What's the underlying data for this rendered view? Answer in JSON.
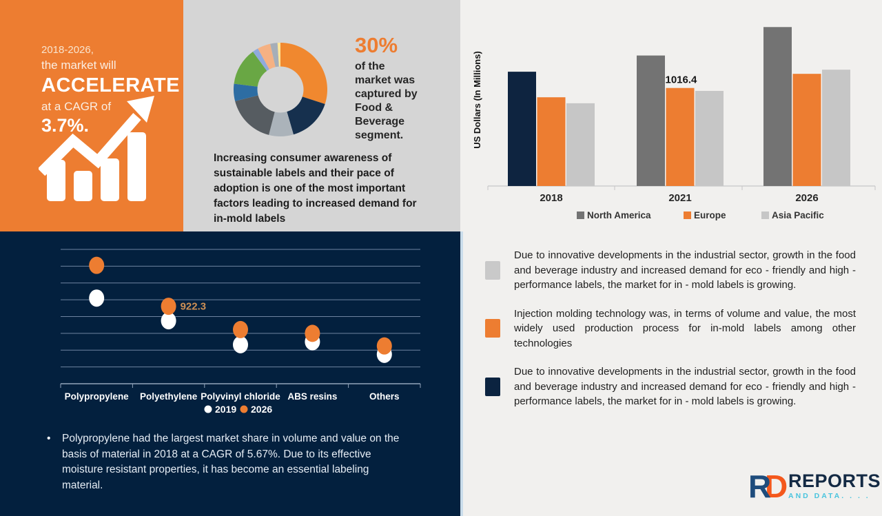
{
  "accelerate_panel": {
    "period": "2018-2026,",
    "line2": "the market will",
    "headline": "ACCELERATE",
    "line4": "at a CAGR of",
    "cagr": "3.7%."
  },
  "insight_panel": {
    "stat_value": "30%",
    "stat_caption": "of the\nmarket was\ncaptured by\nFood &\nBeverage\nsegment.",
    "body": "Increasing consumer awareness of sustainable labels and their pace of adoption is one of the most important factors leading to increased demand for in-mold labels"
  },
  "material_note": "Polypropylene had the largest market share in volume and value on the basis of material in 2018 at a CAGR of 5.67%. Due to its effective moisture resistant properties, it has become an essential labeling material.",
  "insights_right": [
    {
      "marker_color": "#C9C9C9",
      "text": "Due to innovative developments in the industrial sector, growth in the food and beverage industry and increased demand for eco - friendly and high - performance labels, the market for in - mold labels is growing."
    },
    {
      "marker_color": "#ED7D31",
      "text": "Injection molding technology was, in terms of volume and value, the most widely used production process for in-mold labels among other technologies"
    },
    {
      "marker_color": "#0B2340",
      "text": "Due to innovative developments in the industrial sector, growth in the food and beverage industry and increased demand for eco - friendly and high - performance labels, the market for in - mold labels is growing."
    }
  ],
  "logo": {
    "mark_r": "R",
    "mark_d": "D",
    "name": "REPORTS",
    "tagline": "AND DATA. . . ."
  },
  "colors": {
    "accent_orange": "#ED7D31",
    "panel_navy": "#03203E",
    "panel_gray": "#D5D5D5",
    "right_bg": "#F1F0EE"
  },
  "chart_data": [
    {
      "type": "pie",
      "subtype": "donut",
      "highlight_label": "Food & Beverage",
      "highlight_value_pct": 30,
      "slices": [
        {
          "value": 30,
          "color": "#F0882F"
        },
        {
          "value": 15.5,
          "color": "#16304E"
        },
        {
          "value": 8.5,
          "color": "#ABB3BA"
        },
        {
          "value": 17,
          "color": "#565C61"
        },
        {
          "value": 6,
          "color": "#2D6DA3"
        },
        {
          "value": 13,
          "color": "#69A744"
        },
        {
          "value": 2,
          "color": "#8FAADC"
        },
        {
          "value": 4.5,
          "color": "#F5B183"
        },
        {
          "value": 2.5,
          "color": "#A6AEB8"
        },
        {
          "value": 1,
          "color": "#FFE699"
        }
      ]
    },
    {
      "type": "bar",
      "categories": [
        "2018",
        "2021",
        "2026"
      ],
      "series": [
        {
          "name": "North America",
          "color": "#737373",
          "colors": [
            "#0E2440",
            "#737373",
            "#737373"
          ],
          "values": [
            1185,
            1353,
            1648
          ]
        },
        {
          "name": "Europe",
          "color": "#ED7D31",
          "values": [
            920,
            1016.4,
            1163
          ]
        },
        {
          "name": "Asia Pacific",
          "color": "#C6C6C6",
          "values": [
            858,
            986,
            1206
          ]
        }
      ],
      "ylabel": "US Dollars (In Millions)",
      "ylim": [
        0,
        1750
      ],
      "grid": false,
      "legend_position": "bottom",
      "data_labels": [
        {
          "series": "Europe",
          "category": "2021",
          "text": "1016.4"
        }
      ]
    },
    {
      "type": "scatter",
      "categories": [
        "Polypropylene",
        "Polyethylene",
        "Polyvinyl chloride",
        "ABS resins",
        "Others"
      ],
      "series": [
        {
          "name": "2019",
          "color": "#FFFFFF",
          "values": [
            1020,
            750,
            465,
            500,
            350
          ]
        },
        {
          "name": "2026",
          "color": "#ED7D31",
          "values": [
            1410,
            922.3,
            645,
            600,
            450
          ]
        }
      ],
      "ylim": [
        0,
        1600
      ],
      "gridline_step": 200,
      "grid": true,
      "legend_position": "bottom",
      "data_labels": [
        {
          "series": "2026",
          "category": "Polyethylene",
          "text": "922.3"
        }
      ]
    }
  ]
}
